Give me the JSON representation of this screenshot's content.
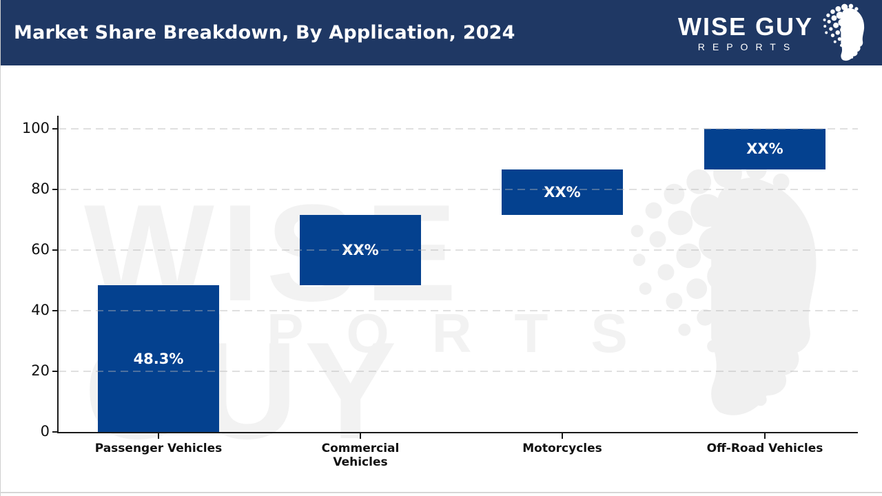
{
  "header": {
    "title": "Market Share Breakdown, By Application, 2024",
    "logo": {
      "line1": "WISE GUY",
      "line2": "REPORTS"
    }
  },
  "watermark": {
    "line1": "WISE GUY",
    "line2": "REPORTS"
  },
  "chart_data": {
    "type": "bar",
    "variant": "waterfall",
    "title": "Market Share Breakdown, By Application, 2024",
    "categories": [
      "Passenger Vehicles",
      "Commercial Vehicles",
      "Motorcycles",
      "Off-Road Vehicles"
    ],
    "category_display": [
      "Passenger Vehicles",
      "Commercial\nVehicles",
      "Motorcycles",
      "Off-Road Vehicles"
    ],
    "segments": [
      {
        "category": "Passenger Vehicles",
        "start": 0,
        "end": 48.3,
        "label": "48.3%"
      },
      {
        "category": "Commercial Vehicles",
        "start": 48.3,
        "end": 71.5,
        "label": "XX%"
      },
      {
        "category": "Motorcycles",
        "start": 71.5,
        "end": 86.6,
        "label": "XX%"
      },
      {
        "category": "Off-Road Vehicles",
        "start": 86.6,
        "end": 100,
        "label": "XX%"
      }
    ],
    "xlabel": "",
    "ylabel": "",
    "ylim": [
      0,
      105
    ],
    "yticks": [
      0,
      20,
      40,
      60,
      80,
      100
    ],
    "grid": {
      "horizontal": true,
      "style": "dashed",
      "drawn_over_bars": true
    },
    "legend": null,
    "colors": {
      "header_background": "#1f3864",
      "bar": "#04418f",
      "bar_label": "#ffffff",
      "axis": "#1a1a1a",
      "tick_label": "#111111",
      "gridline": "#e3e3e3",
      "watermark": "#f2f2f2",
      "background": "#ffffff"
    }
  }
}
